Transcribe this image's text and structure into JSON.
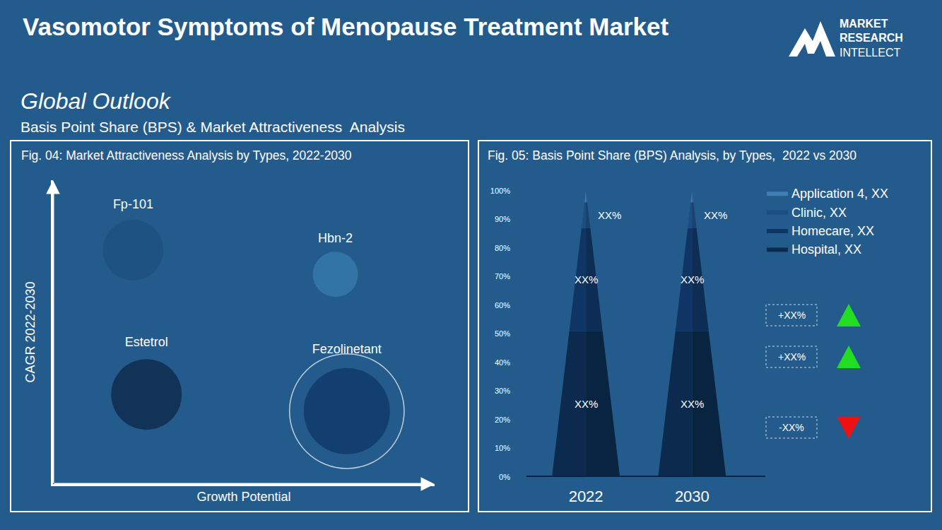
{
  "header": {
    "title": "Vasomotor Symptoms of Menopause Treatment Market",
    "logo": [
      "MARKET",
      "RESEARCH",
      "INTELLECT"
    ],
    "section": "Global Outlook",
    "subtitle": "Basis Point Share (BPS) & Market Attractiveness  Analysis"
  },
  "chart_data": [
    {
      "type": "bubble",
      "title": "Fig. 04: Market Attractiveness Analysis by Types, 2022-2030",
      "x_label": "Growth Potential",
      "y_label": "CAGR 2022-2030",
      "xlim": [
        0,
        10
      ],
      "ylim": [
        0,
        10
      ],
      "tick_labels": false,
      "grid": false,
      "series": [
        {
          "name": "Fp-101",
          "x": [
            2.1
          ],
          "y": [
            7.7
          ],
          "size": [
            86
          ],
          "color": "#1c4e7f"
        },
        {
          "name": "Hbn-2",
          "x": [
            7.4
          ],
          "y": [
            6.9
          ],
          "size": [
            64
          ],
          "color": "#3b7fb0"
        },
        {
          "name": "Estetrol",
          "x": [
            2.45
          ],
          "y": [
            2.95
          ],
          "size": [
            100
          ],
          "color": "#0a2242"
        },
        {
          "name": "Fezolinetant",
          "x": [
            7.7
          ],
          "y": [
            2.4
          ],
          "size": [
            122
          ],
          "color": "#0c3363"
        }
      ]
    },
    {
      "type": "bar",
      "stacked": true,
      "title": "Fig. 05: Basis Point Share (BPS) Analysis, by Types,  2022 vs 2030",
      "categories": [
        "2022",
        "2030"
      ],
      "ylim": [
        0,
        100
      ],
      "yticks": [
        {
          "value": 0,
          "label": "0%"
        },
        {
          "value": 10,
          "label": "10%"
        },
        {
          "value": 20,
          "label": "20%"
        },
        {
          "value": 30,
          "label": "30%"
        },
        {
          "value": 40,
          "label": "40%"
        },
        {
          "value": 50,
          "label": "50%"
        },
        {
          "value": 60,
          "label": "60%"
        },
        {
          "value": 70,
          "label": "70%"
        },
        {
          "value": 80,
          "label": "80%"
        },
        {
          "value": 90,
          "label": "90%"
        },
        {
          "value": 100,
          "label": "100%"
        }
      ],
      "grid": false,
      "legend": "right",
      "data_labels": true,
      "series": [
        {
          "name": "Hospital, XX",
          "color": "#0b2a4d",
          "values": [
            51,
            51
          ],
          "value_labels": [
            "XX%",
            "XX%"
          ]
        },
        {
          "name": "Homecare, XX",
          "color": "#0f3564",
          "values": [
            36,
            36
          ],
          "value_labels": [
            "XX%",
            "XX%"
          ]
        },
        {
          "name": "Clinic, XX",
          "color": "#1c4e82",
          "values": [
            9,
            9
          ],
          "value_labels": [
            "XX%",
            "XX%"
          ]
        },
        {
          "name": "Application 4, XX",
          "color": "#3d7fb3",
          "values": [
            4,
            4
          ]
        }
      ],
      "changes": [
        {
          "label": "+XX%",
          "marker": "triangle-up",
          "color": "#22dd22"
        },
        {
          "label": "+XX%",
          "marker": "triangle-up",
          "color": "#22dd22"
        },
        {
          "label": "-XX%",
          "marker": "triangle-down",
          "color": "#ee1111"
        }
      ]
    }
  ]
}
